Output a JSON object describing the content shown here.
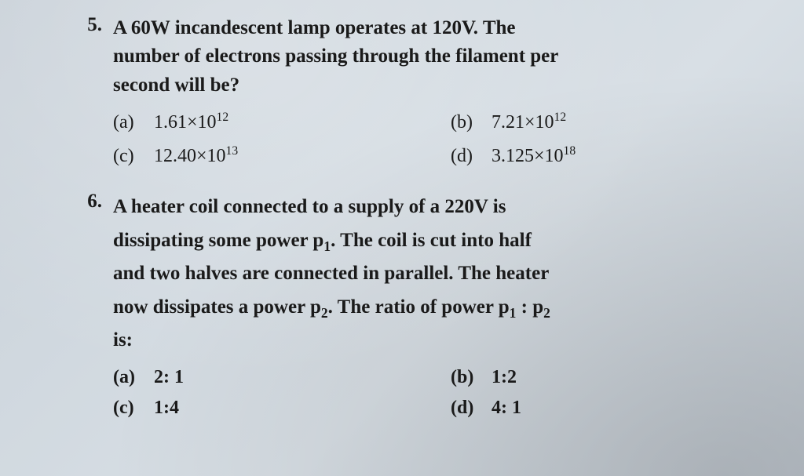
{
  "question5": {
    "number": "5.",
    "text_l1": "A 60W incandescent lamp operates at 120V. The",
    "text_l2": "number of electrons passing through the filament per",
    "text_l3": "second will be?",
    "opt_a_label": "(a)",
    "opt_a_base": "1.61×10",
    "opt_a_exp": "12",
    "opt_b_label": "(b)",
    "opt_b_base": "7.21×10",
    "opt_b_exp": "12",
    "opt_c_label": "(c)",
    "opt_c_base": "12.40×10",
    "opt_c_exp": "13",
    "opt_d_label": "(d)",
    "opt_d_base": "3.125×10",
    "opt_d_exp": "18"
  },
  "question6": {
    "number": "6.",
    "text_l1": "A heater coil connected to a supply of a 220V is",
    "text_l2a": "dissipating some power p",
    "text_l2b": ". The coil is cut into half",
    "text_l3": "and two halves are connected in parallel. The heater",
    "text_l4a": "now dissipates a power p",
    "text_l4b": ". The ratio of power p",
    "text_l4c": " : p",
    "text_l5": "is:",
    "sub1": "1",
    "sub2": "2",
    "opt_a_label": "(a)",
    "opt_a_text": "2: 1",
    "opt_b_label": "(b)",
    "opt_b_text": "1:2",
    "opt_c_label": "(c)",
    "opt_c_text": "1:4",
    "opt_d_label": "(d)",
    "opt_d_text": "4: 1"
  }
}
